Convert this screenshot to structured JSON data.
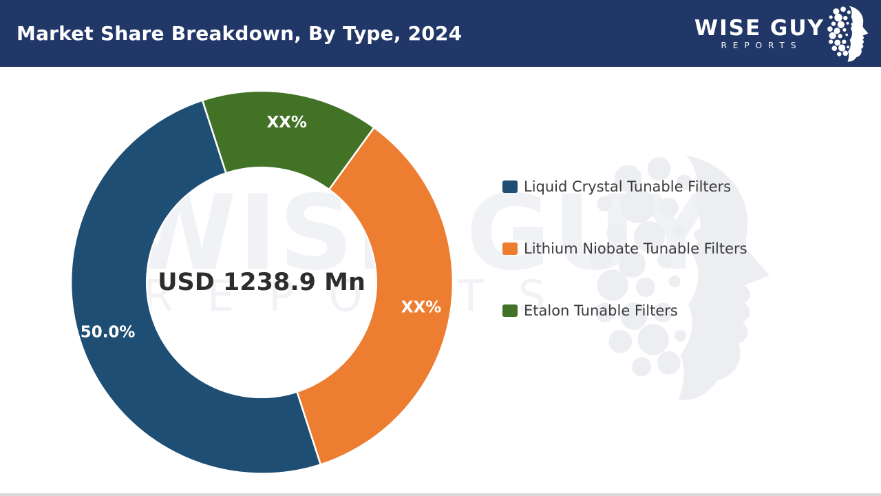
{
  "header": {
    "title": "Market Share Breakdown, By Type, 2024",
    "logo": {
      "wordmark": "WISE GUY",
      "subtext": "REPORTS"
    }
  },
  "watermark": {
    "wordmark": "WISE GUY",
    "subtext": "REPORTS"
  },
  "colors": {
    "header_bg": "#213767",
    "title_text": "#ffffff",
    "center_text": "#2d2d2d",
    "legend_text": "#3a3a3a",
    "slice_label_text": "#ffffff",
    "slice_gap": "#ffffff",
    "footer_strip": "#d9d9d9",
    "watermark_tint": "#f1f2f5"
  },
  "chart_data": {
    "type": "pie",
    "subtype": "donut",
    "title": "Market Share Breakdown, By Type, 2024",
    "center_label": "USD 1238.9 Mn",
    "start_angle_deg": 108,
    "counterclockwise": true,
    "inner_radius_ratio": 0.6,
    "label_distance_ratio": 0.845,
    "legend_position": "right",
    "slices": [
      {
        "label": "Liquid Crystal Tunable Filters",
        "value_pct": 50.0,
        "display_label": "50.0%",
        "color": "#1f4e74"
      },
      {
        "label": "Lithium Niobate Tunable Filters",
        "value_pct": 35.0,
        "display_label": "XX%",
        "color": "#ed7d31"
      },
      {
        "label": "Etalon Tunable Filters",
        "value_pct": 15.0,
        "display_label": "XX%",
        "color": "#427226"
      }
    ]
  }
}
